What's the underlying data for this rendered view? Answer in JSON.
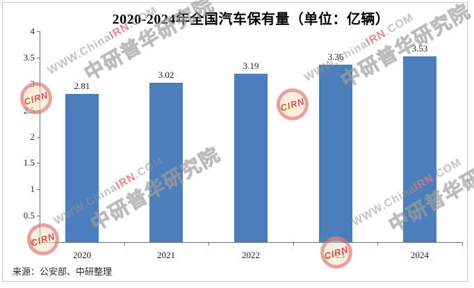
{
  "title": "2020-2024年全国汽车保有量（单位：亿辆）",
  "source": "来源：公安部、中研整理",
  "chart_data": {
    "type": "bar",
    "title": "2020-2024年全国汽车保有量（单位：亿辆）",
    "unit": "亿辆",
    "categories": [
      "2020",
      "2021",
      "2022",
      "2023",
      "2024"
    ],
    "values": [
      2.81,
      3.02,
      3.19,
      3.36,
      3.53
    ],
    "value_labels": [
      "2.81",
      "3.02",
      "3.19",
      "3.36",
      "3.53"
    ],
    "xlabel": "",
    "ylabel": "",
    "ylim": [
      0,
      4
    ],
    "yticks": [
      {
        "value": 0,
        "label": "0"
      },
      {
        "value": 0.5,
        "label": "0.5"
      },
      {
        "value": 1,
        "label": "1"
      },
      {
        "value": 1.5,
        "label": "1.5"
      },
      {
        "value": 2,
        "label": "2"
      },
      {
        "value": 2.5,
        "label": "2.5"
      },
      {
        "value": 3,
        "label": "3"
      },
      {
        "value": 3.5,
        "label": "3.5"
      },
      {
        "value": 4,
        "label": "4"
      }
    ],
    "grid": false,
    "legend_position": "none",
    "bar_color": "#4d7ebc",
    "source": "来源：公安部、中研整理"
  },
  "watermark": {
    "url_prefix": "WWW.China",
    "url_mid": "IRN",
    "url_suffix": ".COM",
    "brand": "中研普华研究院",
    "logo": "CIRN"
  },
  "colors": {
    "bar": "#4d7ebc",
    "axis": "#6e6e6e",
    "text": "#1f1f1f",
    "border": "#c9c9c9",
    "watermark_gray": "#919191",
    "watermark_red": "#c62d2d"
  }
}
